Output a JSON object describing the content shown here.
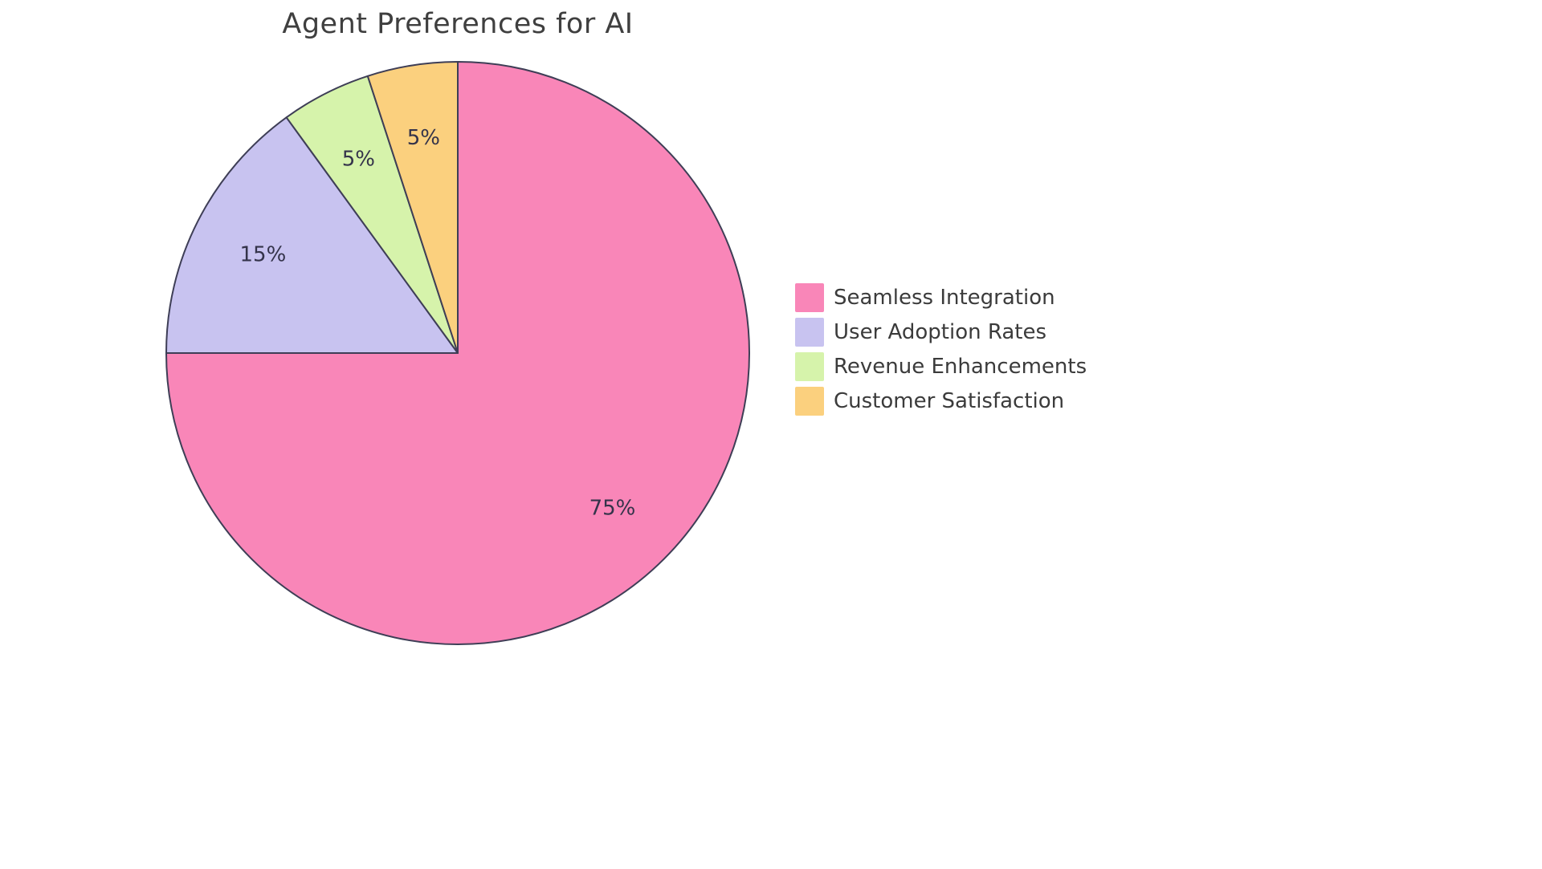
{
  "chart_data": {
    "type": "pie",
    "title": "Agent Preferences for AI",
    "labels": [
      "Seamless Integration",
      "User Adoption Rates",
      "Revenue Enhancements",
      "Customer Satisfaction"
    ],
    "values": [
      75,
      15,
      5,
      5
    ],
    "slice_labels": [
      "75%",
      "15%",
      "5%",
      "5%"
    ],
    "colors": [
      "#F986B8",
      "#C8C3F0",
      "#D6F3AB",
      "#FBD07E"
    ],
    "stroke_color": "#3E3E56",
    "text_color": "#3b3b3b",
    "start_angle_deg": 0,
    "direction": "clockwise",
    "legend_position": "right",
    "background": "#ffffff"
  }
}
